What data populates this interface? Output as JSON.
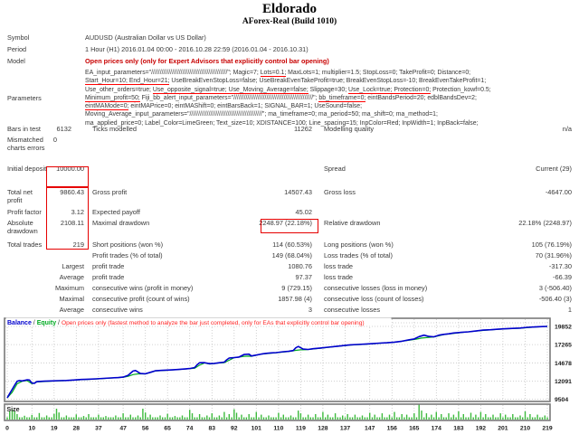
{
  "header": {
    "title": "Eldorado",
    "subtitle": "AForex-Real (Build 1010)"
  },
  "info": {
    "symbol_label": "Symbol",
    "symbol": "AUDUSD (Australian Dollar vs US Dollar)",
    "period_label": "Period",
    "period": "1 Hour (H1) 2016.01.04 00:00 - 2016.10.28 22:59 (2016.01.04 - 2016.10.31)",
    "model_label": "Model",
    "model": "Open prices only (only for Expert Advisors that explicitly control bar opening)",
    "parameters_label": "Parameters",
    "parameters_lines": [
      [
        {
          "t": "EA_input_parameters=\"////////////////////////////////////////////\"; Magic=7; "
        },
        {
          "t": "Lots=0.1;",
          "u": true
        },
        {
          "t": " MaxLots=1; multiplier=1.5; StopLoss=0; TakeProfit=0; Distance=0;"
        }
      ],
      [
        {
          "t": "Start_Hour=10; End_Hour=21;",
          "u": true
        },
        {
          "t": " UseBreakEvenStopLoss=false; UseBreakEvenTakeProfit=true; BreakEvenStopLoss=-10; BreakEvenTakeProfit=1;"
        }
      ],
      [
        {
          "t": "Use_other_orders=true; "
        },
        {
          "t": "Use_opposite_signal=true; Use_Moving_Average=false;",
          "u": true
        },
        {
          "t": " Slippage=30; "
        },
        {
          "t": "Use_Lock=true; Protection=0;",
          "u": true
        },
        {
          "t": " Protection_kowf=0.5;"
        }
      ],
      [
        {
          "t": "Minimum_profit=50;",
          "u": true
        },
        {
          "t": " Fiji_bb_alert_input_parameters=\"//////////////////////////////////////////////\"; "
        },
        {
          "t": "bb_timeframe=0;",
          "u": true
        },
        {
          "t": " eintBandsPeriod=20; edblBandsDev=2;"
        }
      ],
      [
        {
          "t": "eintMAMode=0;",
          "u": true
        },
        {
          "t": " eintMAPrice=0; eintMAShift=0; eintBarsBack=1; SIGNAL_BAR=1; UseSound=false;"
        }
      ],
      [
        {
          "t": "Moving_Average_input_parameters=\"//////////////////////////////////////////\"; ma_timeframe=0; ma_period=50; ma_shift=0; ma_method=1;"
        }
      ],
      [
        {
          "t": "ma_applied_price=0; Label_Color=LimeGreen; Text_size=10; XDISTANCE=100; Line_spacing=15; InpColor=Red; InpWidth=1; InpBack=false;"
        }
      ]
    ]
  },
  "stats_rows": [
    {
      "c1": "Bars in test",
      "c2": "6132",
      "c2pad": 14,
      "c3": "Ticks modelled",
      "c4": "11262",
      "c5": "Modelling quality",
      "c6": "n/a",
      "c1nw": true
    },
    {
      "c1": "Mismatched charts errors",
      "c2": "0",
      "c2pad": 30
    },
    {
      "c1": "Initial deposit",
      "c2": "10000.00",
      "c5": "Spread",
      "c6": "Current (29)"
    },
    {
      "c1": "Total net profit",
      "c2": "9860.43",
      "c3": "Gross profit",
      "c4": "14507.43",
      "c5": "Gross loss",
      "c6": "-4647.00"
    },
    {
      "c1": "Profit factor",
      "c2": "3.12",
      "c3": "Expected payoff",
      "c4": "45.02",
      "c1nw": true
    },
    {
      "c1": "Absolute drawdown",
      "c2": "2108.11",
      "c3": "Maximal drawdown",
      "c4": "2248.97 (22.18%)",
      "c5": "Relative drawdown",
      "c6": "22.18% (2248.97)"
    },
    {
      "c1": "Total trades",
      "c2": "219",
      "c3": "Short positions (won %)",
      "c4": "114 (60.53%)",
      "c5": "Long positions (won %)",
      "c6": "105 (76.19%)",
      "c1nw": true
    },
    {
      "c3": "Profit trades (% of total)",
      "c4": "149 (68.04%)",
      "c5": "Loss trades (% of total)",
      "c6": "70 (31.96%)"
    },
    {
      "c2": "Largest",
      "c3": "profit trade",
      "c4": "1080.76",
      "c5": "loss trade",
      "c6": "-317.30"
    },
    {
      "c2": "Average",
      "c3": "profit trade",
      "c4": "97.37",
      "c5": "loss trade",
      "c6": "-66.39"
    },
    {
      "c2": "Maximum",
      "c3": "consecutive wins (profit in money)",
      "c4": "9 (729.15)",
      "c5": "consecutive losses (loss in money)",
      "c6": "3 (-506.40)"
    },
    {
      "c2": "Maximal",
      "c3": "consecutive profit (count of wins)",
      "c4": "1857.98 (4)",
      "c5": "consecutive loss (count of losses)",
      "c6": "-506.40 (3)"
    },
    {
      "c2": "Average",
      "c3": "consecutive wins",
      "c4": "3",
      "c5": "consecutive losses",
      "c6": "1"
    }
  ],
  "annotation_color": "#e60000",
  "chart_data": {
    "type": "line",
    "legend": {
      "balance_label": "Balance",
      "equity_label": "Equity",
      "separator": " / ",
      "note": "Open prices only (fastest method to analyze the bar just completed, only for EAs that explicitly control bar opening)"
    },
    "x_ticks": [
      0,
      10,
      19,
      28,
      37,
      47,
      56,
      65,
      74,
      83,
      92,
      101,
      110,
      119,
      128,
      137,
      147,
      156,
      165,
      174,
      183,
      192,
      201,
      210,
      219
    ],
    "y_ticks": [
      19852,
      17265,
      14678,
      12091,
      9504
    ],
    "xlim": [
      0,
      219
    ],
    "ylim": [
      9504,
      19852
    ],
    "grid": true,
    "legend_position": "top-left",
    "colors": {
      "note_text": "#ff2222",
      "grid": "#c4c4c4",
      "border": "#7a7a7a"
    },
    "series": [
      {
        "name": "Balance",
        "color": "#0000cd",
        "points": [
          [
            0,
            9700
          ],
          [
            1,
            10300
          ],
          [
            2,
            10900
          ],
          [
            3,
            11500
          ],
          [
            4,
            12050
          ],
          [
            5,
            12150
          ],
          [
            6,
            12100
          ],
          [
            8,
            12250
          ],
          [
            9,
            12230
          ],
          [
            10,
            11800
          ],
          [
            11,
            11760
          ],
          [
            12,
            12000
          ],
          [
            15,
            12060
          ],
          [
            18,
            12100
          ],
          [
            21,
            12140
          ],
          [
            24,
            12170
          ],
          [
            27,
            12230
          ],
          [
            30,
            12300
          ],
          [
            33,
            12340
          ],
          [
            36,
            12400
          ],
          [
            39,
            12460
          ],
          [
            42,
            12520
          ],
          [
            45,
            12580
          ],
          [
            47,
            12640
          ],
          [
            49,
            12900
          ],
          [
            51,
            13500
          ],
          [
            52,
            13580
          ],
          [
            54,
            13150
          ],
          [
            56,
            13120
          ],
          [
            58,
            13320
          ],
          [
            60,
            13540
          ],
          [
            63,
            13600
          ],
          [
            66,
            13660
          ],
          [
            69,
            13720
          ],
          [
            72,
            13800
          ],
          [
            74,
            13860
          ],
          [
            76,
            14000
          ],
          [
            77,
            14400
          ],
          [
            78,
            14680
          ],
          [
            80,
            14700
          ],
          [
            82,
            14560
          ],
          [
            84,
            14600
          ],
          [
            86,
            14680
          ],
          [
            88,
            14780
          ],
          [
            89,
            15100
          ],
          [
            90,
            15350
          ],
          [
            92,
            15420
          ],
          [
            94,
            15500
          ],
          [
            96,
            15860
          ],
          [
            98,
            15900
          ],
          [
            99,
            15650
          ],
          [
            101,
            15780
          ],
          [
            103,
            15920
          ],
          [
            105,
            16020
          ],
          [
            107,
            16080
          ],
          [
            109,
            16130
          ],
          [
            112,
            16250
          ],
          [
            114,
            16300
          ],
          [
            116,
            16420
          ],
          [
            117,
            16800
          ],
          [
            118,
            17000
          ],
          [
            120,
            16620
          ],
          [
            122,
            16580
          ],
          [
            124,
            16680
          ],
          [
            127,
            16780
          ],
          [
            130,
            16900
          ],
          [
            133,
            17000
          ],
          [
            136,
            17120
          ],
          [
            139,
            17230
          ],
          [
            142,
            17280
          ],
          [
            145,
            17330
          ],
          [
            148,
            17400
          ],
          [
            151,
            17480
          ],
          [
            154,
            17530
          ],
          [
            157,
            17620
          ],
          [
            160,
            17750
          ],
          [
            163,
            17950
          ],
          [
            165,
            18060
          ],
          [
            167,
            18400
          ],
          [
            169,
            18600
          ],
          [
            171,
            18420
          ],
          [
            173,
            18380
          ],
          [
            175,
            18600
          ],
          [
            177,
            18720
          ],
          [
            179,
            18800
          ],
          [
            181,
            18920
          ],
          [
            184,
            19000
          ],
          [
            187,
            19080
          ],
          [
            190,
            19200
          ],
          [
            193,
            19320
          ],
          [
            196,
            19380
          ],
          [
            199,
            19450
          ],
          [
            202,
            19520
          ],
          [
            205,
            19570
          ],
          [
            208,
            19620
          ],
          [
            211,
            19720
          ],
          [
            214,
            19780
          ],
          [
            217,
            19820
          ],
          [
            219,
            19852
          ]
        ]
      },
      {
        "name": "Equity",
        "color": "#00aa22",
        "points": [
          [
            0,
            9700
          ],
          [
            2,
            10500
          ],
          [
            4,
            11700
          ],
          [
            6,
            12050
          ],
          [
            8,
            12150
          ],
          [
            10,
            11700
          ],
          [
            12,
            11960
          ],
          [
            18,
            12080
          ],
          [
            24,
            12150
          ],
          [
            30,
            12280
          ],
          [
            36,
            12380
          ],
          [
            42,
            12500
          ],
          [
            47,
            12620
          ],
          [
            49,
            12750
          ],
          [
            51,
            13000
          ],
          [
            53,
            13100
          ],
          [
            56,
            13100
          ],
          [
            58,
            13300
          ],
          [
            60,
            13520
          ],
          [
            66,
            13640
          ],
          [
            72,
            13780
          ],
          [
            76,
            13900
          ],
          [
            78,
            14350
          ],
          [
            80,
            14660
          ],
          [
            82,
            14500
          ],
          [
            86,
            14660
          ],
          [
            88,
            14700
          ],
          [
            90,
            15050
          ],
          [
            92,
            15400
          ],
          [
            96,
            15600
          ],
          [
            98,
            15620
          ],
          [
            99,
            15600
          ],
          [
            103,
            15900
          ],
          [
            109,
            16110
          ],
          [
            114,
            16280
          ],
          [
            117,
            16450
          ],
          [
            119,
            16520
          ],
          [
            121,
            16540
          ],
          [
            127,
            16760
          ],
          [
            133,
            16980
          ],
          [
            139,
            17210
          ],
          [
            145,
            17310
          ],
          [
            151,
            17460
          ],
          [
            157,
            17600
          ],
          [
            163,
            17880
          ],
          [
            166,
            18050
          ],
          [
            168,
            18200
          ],
          [
            171,
            18300
          ],
          [
            173,
            18350
          ],
          [
            177,
            18700
          ],
          [
            184,
            18980
          ],
          [
            190,
            19180
          ],
          [
            196,
            19360
          ],
          [
            202,
            19500
          ],
          [
            208,
            19600
          ],
          [
            214,
            19760
          ],
          [
            219,
            19852
          ]
        ]
      }
    ],
    "size_panel": {
      "label": "Size",
      "bar_color": "#3dba3d",
      "default_height": 0.07,
      "bars": {
        "1": 0.5,
        "2": 0.65,
        "3": 0.5,
        "4": 0.3,
        "7": 0.18,
        "10": 0.25,
        "13": 0.38,
        "16": 0.2,
        "19": 0.32,
        "20": 0.7,
        "21": 0.42,
        "24": 0.2,
        "28": 0.28,
        "31": 0.16,
        "33": 0.3,
        "37": 0.26,
        "40": 0.16,
        "44": 0.2,
        "47": 0.36,
        "50": 0.26,
        "53": 0.2,
        "55": 0.7,
        "56": 0.42,
        "58": 0.26,
        "62": 0.2,
        "65": 0.32,
        "68": 0.16,
        "71": 0.2,
        "74": 0.62,
        "75": 0.36,
        "78": 0.3,
        "81": 0.2,
        "83": 0.36,
        "86": 0.2,
        "88": 0.46,
        "90": 0.3,
        "92": 0.66,
        "93": 0.4,
        "95": 0.26,
        "98": 0.3,
        "101": 0.46,
        "103": 0.26,
        "106": 0.2,
        "110": 0.4,
        "112": 0.26,
        "115": 0.2,
        "118": 0.56,
        "119": 0.36,
        "122": 0.26,
        "125": 0.3,
        "128": 0.46,
        "130": 0.26,
        "133": 0.36,
        "136": 0.2,
        "138": 0.3,
        "141": 0.26,
        "144": 0.2,
        "147": 0.4,
        "149": 0.26,
        "152": 0.36,
        "155": 0.26,
        "157": 0.46,
        "160": 0.3,
        "162": 0.26,
        "165": 0.36,
        "167": 1.0,
        "168": 0.56,
        "170": 0.36,
        "172": 0.26,
        "174": 0.46,
        "176": 0.3,
        "179": 0.36,
        "181": 0.26,
        "183": 0.5,
        "185": 0.3,
        "188": 0.4,
        "190": 0.26,
        "192": 0.46,
        "194": 0.3,
        "197": 0.26,
        "200": 0.36,
        "202": 0.26,
        "205": 0.3,
        "208": 0.2,
        "210": 0.5,
        "212": 0.3,
        "215": 0.26,
        "218": 0.2
      }
    }
  }
}
